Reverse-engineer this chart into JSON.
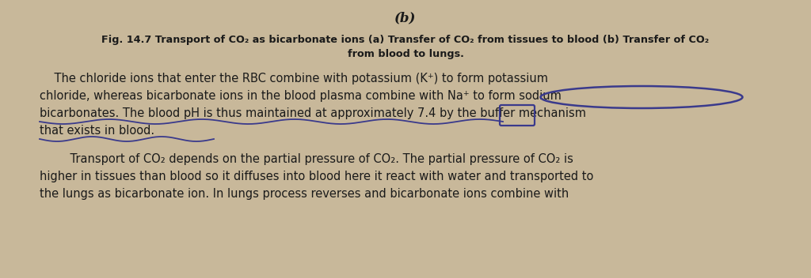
{
  "background_color": "#c8b89a",
  "title_b": "(b)",
  "fig_caption_line1": "Fig. 14.7 Transport of CO₂ as bicarbonate ions (a) Transfer of CO₂ from tissues to blood (b) Transfer of CO₂",
  "fig_caption_line2": "from blood to lungs.",
  "para1_line1": "    The chloride ions that enter the RBC combine with potassium (K⁺) to form potassium",
  "para1_line2": "chloride, whereas bicarbonate ions in the blood plasma combine with Na⁺ to form sodium",
  "para1_line3": "bicarbonates. The blood pH is thus maintained at approximately 7.4 by the buffer mechanism",
  "para1_line4": "that exists in blood.",
  "para2_line1": "    Transport of CO₂ depends on the partial pressure of CO₂. The partial pressure of CO₂ is",
  "para2_line2": "higher in tissues than blood so it diffuses into blood here it react with water and transported to",
  "para2_line3": "the lungs as bicarbonate ion. In lungs process reverses and bicarbonate ions combine with",
  "text_color": "#1a1a1a",
  "annotation_color": "#3a3a8c",
  "font_size_title": 12,
  "font_size_caption": 9.2,
  "font_size_body": 10.5
}
